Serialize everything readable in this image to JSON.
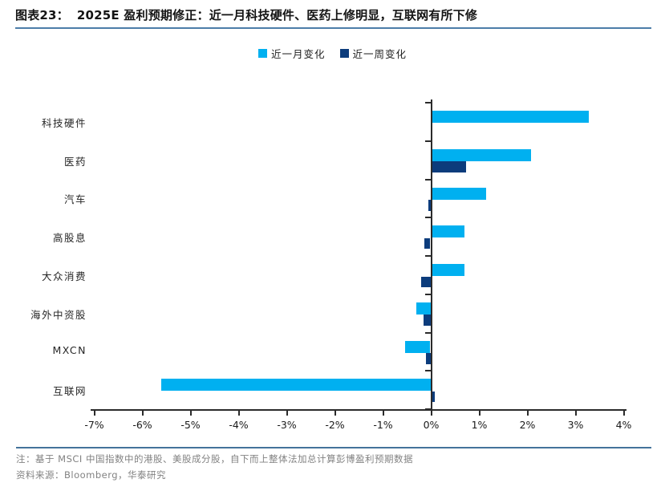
{
  "title": {
    "label": "图表23：",
    "text": "2025E 盈利预期修正：近一月科技硬件、医药上修明显，互联网有所下修"
  },
  "chart_data": {
    "type": "bar",
    "orientation": "horizontal",
    "title": "2025E 盈利预期修正",
    "categories": [
      "科技硬件",
      "医药",
      "汽车",
      "高股息",
      "大众消费",
      "海外中资股",
      "MXCN",
      "互联网"
    ],
    "series": [
      {
        "name": "近一月变化",
        "color": "#00B0F0",
        "values": [
          3.25,
          2.05,
          1.12,
          0.68,
          0.67,
          -0.3,
          -0.52,
          -5.6
        ]
      },
      {
        "name": "近一周变化",
        "color": "#0C3C7C",
        "values": [
          0.0,
          0.7,
          -0.05,
          -0.12,
          -0.2,
          -0.15,
          -0.1,
          0.05
        ]
      }
    ],
    "xlabel": "",
    "ylabel": "",
    "xlim": [
      -7,
      4
    ],
    "x_tick_values": [
      -7,
      -6,
      -5,
      -4,
      -3,
      -2,
      -1,
      0,
      1,
      2,
      3,
      4
    ],
    "x_ticks": [
      "-7%",
      "-6%",
      "-5%",
      "-4%",
      "-3%",
      "-2%",
      "-1%",
      "0%",
      "1%",
      "2%",
      "3%",
      "4%"
    ],
    "grid": false,
    "legend_position": "top-center",
    "unit": "percent"
  },
  "footnotes": {
    "note": "注：基于 MSCI 中国指数中的港股、美股成分股，自下而上整体法加总计算彭博盈利预期数据",
    "source": "资料来源：Bloomberg，华泰研究"
  },
  "colors": {
    "bar_month": "#00B0F0",
    "bar_week": "#0C3C7C",
    "rule_blue": "#4d7da9",
    "axis": "#2b2b2b",
    "footnote_gray": "#828282"
  }
}
